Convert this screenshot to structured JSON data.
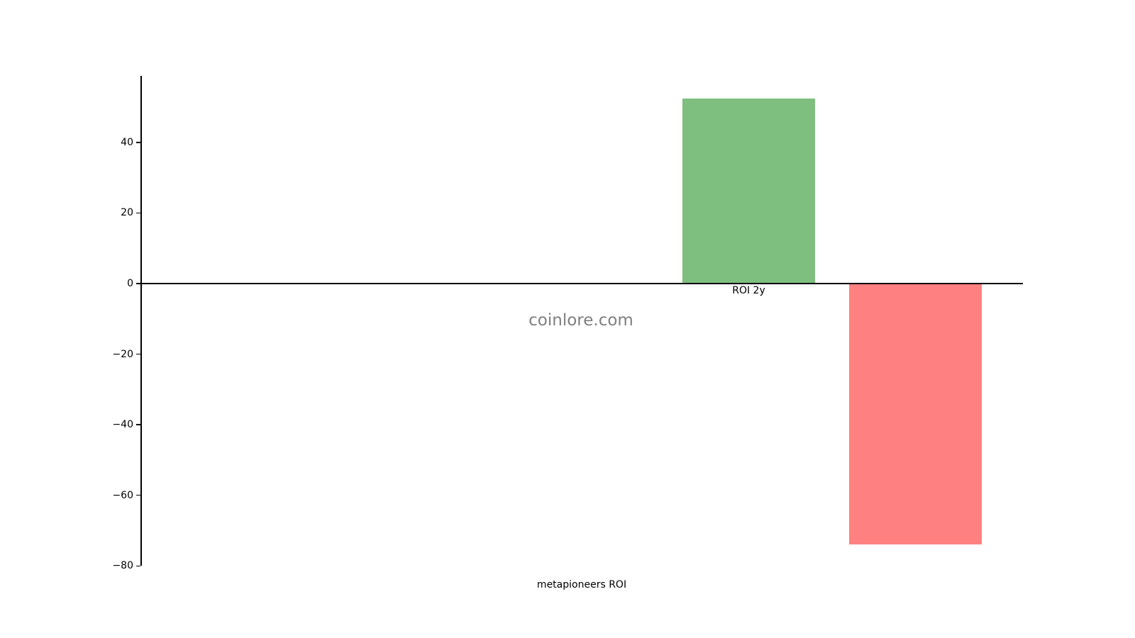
{
  "chart_data": {
    "type": "bar",
    "title": "",
    "xlabel": "metapioneers ROI",
    "ylabel": "",
    "categories": [
      "ROI 2y",
      ""
    ],
    "values": [
      52.4,
      -73.9
    ],
    "bar_colors": [
      "#7ebe7e",
      "#ff8080"
    ],
    "ylim": [
      -80,
      58.8
    ],
    "yticks": [
      40,
      20,
      0,
      -20,
      -40,
      -60,
      -80
    ],
    "ytick_labels": [
      "40",
      "20",
      "0",
      "−20",
      "−40",
      "−60",
      "−80"
    ],
    "grid": false,
    "legend": "none",
    "zero_line": true,
    "axis_color": "#000000"
  },
  "watermark": {
    "text": "coinlore.com",
    "color": "#7f7f7f"
  }
}
